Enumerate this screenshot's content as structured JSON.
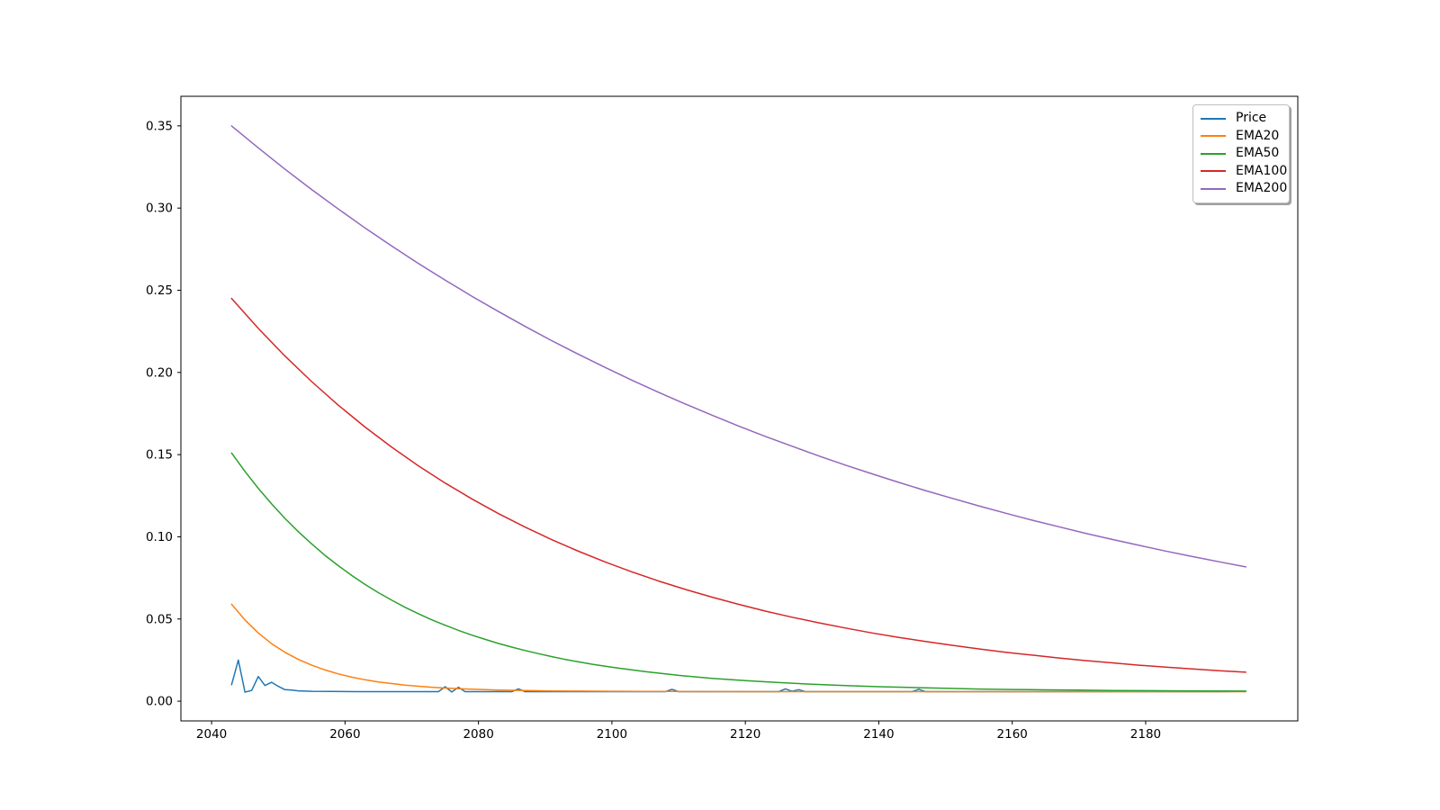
{
  "chart_data": {
    "type": "line",
    "title": "",
    "xlabel": "",
    "ylabel": "",
    "grid": false,
    "background_color": "#ffffff",
    "axes_edge_color": "#000000",
    "xlim": [
      2035.4,
      2202.8
    ],
    "ylim": [
      -0.012,
      0.368
    ],
    "xticks": [
      2040,
      2060,
      2080,
      2100,
      2120,
      2140,
      2160,
      2180
    ],
    "xtick_labels": [
      "2040",
      "2060",
      "2080",
      "2100",
      "2120",
      "2140",
      "2160",
      "2180"
    ],
    "yticks": [
      0.0,
      0.05,
      0.1,
      0.15,
      0.2,
      0.25,
      0.3,
      0.35
    ],
    "ytick_labels": [
      "0.00",
      "0.05",
      "0.10",
      "0.15",
      "0.20",
      "0.25",
      "0.30",
      "0.35"
    ],
    "legend": {
      "position": "upper-right",
      "shadow": true
    },
    "series": [
      {
        "name": "Price",
        "color": "#1f77b4",
        "x": [
          2043,
          2044,
          2045,
          2046,
          2047,
          2048,
          2049,
          2050,
          2051,
          2052,
          2053,
          2055,
          2058,
          2062,
          2066,
          2070,
          2074,
          2075,
          2076,
          2077,
          2078,
          2080,
          2083,
          2085,
          2086,
          2087,
          2090,
          2094,
          2098,
          2102,
          2106,
          2108,
          2109,
          2110,
          2114,
          2118,
          2122,
          2125,
          2126,
          2127,
          2128,
          2129,
          2133,
          2137,
          2141,
          2145,
          2146,
          2147,
          2151,
          2156,
          2161,
          2166,
          2171,
          2176,
          2181,
          2186,
          2191,
          2195
        ],
        "y": [
          0.01,
          0.025,
          0.0055,
          0.0065,
          0.015,
          0.0095,
          0.0115,
          0.009,
          0.007,
          0.0068,
          0.0063,
          0.006,
          0.0059,
          0.0058,
          0.0058,
          0.0058,
          0.0058,
          0.0088,
          0.0056,
          0.0085,
          0.0058,
          0.0058,
          0.0058,
          0.0058,
          0.0075,
          0.0058,
          0.0058,
          0.0058,
          0.0058,
          0.0058,
          0.0058,
          0.0058,
          0.0072,
          0.0058,
          0.0058,
          0.0058,
          0.0058,
          0.0058,
          0.0075,
          0.006,
          0.007,
          0.0058,
          0.0058,
          0.0058,
          0.0058,
          0.0058,
          0.0072,
          0.0058,
          0.0058,
          0.0058,
          0.0058,
          0.0058,
          0.0058,
          0.0058,
          0.0058,
          0.0058,
          0.0058,
          0.006
        ]
      },
      {
        "name": "EMA20",
        "color": "#ff7f0e",
        "x": [
          2043,
          2045,
          2047,
          2049,
          2051,
          2053,
          2055,
          2057,
          2059,
          2061,
          2063,
          2065,
          2067,
          2069,
          2071,
          2073,
          2075,
          2077,
          2079,
          2081,
          2083,
          2085,
          2088,
          2091,
          2095,
          2100,
          2105,
          2110,
          2120,
          2130,
          2140,
          2150,
          2160,
          2170,
          2180,
          2190,
          2195
        ],
        "y": [
          0.059,
          0.0494,
          0.0415,
          0.035,
          0.0297,
          0.0254,
          0.0219,
          0.019,
          0.0166,
          0.0146,
          0.013,
          0.0117,
          0.0107,
          0.0098,
          0.0091,
          0.0085,
          0.008,
          0.0076,
          0.0073,
          0.007,
          0.0068,
          0.0066,
          0.0064,
          0.0062,
          0.0061,
          0.006,
          0.0059,
          0.0059,
          0.0058,
          0.0058,
          0.0058,
          0.0058,
          0.0058,
          0.0058,
          0.0058,
          0.0058,
          0.0058
        ]
      },
      {
        "name": "EMA50",
        "color": "#2ca02c",
        "x": [
          2043,
          2045,
          2047,
          2049,
          2051,
          2053,
          2055,
          2057,
          2059,
          2061,
          2063,
          2065,
          2067,
          2069,
          2071,
          2073,
          2075,
          2077,
          2079,
          2081,
          2083,
          2085,
          2087,
          2089,
          2091,
          2093,
          2095,
          2097,
          2099,
          2101,
          2105,
          2110,
          2115,
          2120,
          2125,
          2130,
          2135,
          2140,
          2145,
          2150,
          2155,
          2160,
          2165,
          2170,
          2175,
          2180,
          2185,
          2190,
          2195
        ],
        "y": [
          0.151,
          0.1398,
          0.1295,
          0.12,
          0.1112,
          0.1031,
          0.0957,
          0.0887,
          0.0824,
          0.0765,
          0.071,
          0.066,
          0.0614,
          0.0571,
          0.0532,
          0.0495,
          0.0462,
          0.0431,
          0.0402,
          0.0376,
          0.0351,
          0.0329,
          0.0308,
          0.0289,
          0.0271,
          0.0254,
          0.0239,
          0.0225,
          0.0213,
          0.0201,
          0.018,
          0.0157,
          0.0139,
          0.0125,
          0.0113,
          0.0103,
          0.0095,
          0.0088,
          0.0083,
          0.0078,
          0.0074,
          0.0071,
          0.0069,
          0.0067,
          0.0065,
          0.0064,
          0.0063,
          0.0062,
          0.0061
        ]
      },
      {
        "name": "EMA100",
        "color": "#d62728",
        "x": [
          2043,
          2047,
          2051,
          2055,
          2059,
          2063,
          2067,
          2071,
          2075,
          2079,
          2083,
          2087,
          2091,
          2095,
          2099,
          2103,
          2107,
          2111,
          2115,
          2119,
          2123,
          2127,
          2131,
          2135,
          2139,
          2143,
          2147,
          2151,
          2155,
          2159,
          2163,
          2167,
          2171,
          2175,
          2179,
          2183,
          2187,
          2191,
          2195
        ],
        "y": [
          0.245,
          0.2268,
          0.21,
          0.1944,
          0.18,
          0.1668,
          0.1545,
          0.1432,
          0.1327,
          0.1231,
          0.1141,
          0.1059,
          0.0982,
          0.0912,
          0.0847,
          0.0787,
          0.0731,
          0.068,
          0.0633,
          0.0589,
          0.0548,
          0.0511,
          0.0477,
          0.0445,
          0.0415,
          0.0388,
          0.0363,
          0.034,
          0.0318,
          0.0298,
          0.028,
          0.0263,
          0.0247,
          0.0233,
          0.0219,
          0.0207,
          0.0196,
          0.0185,
          0.0176
        ]
      },
      {
        "name": "EMA200",
        "color": "#9467bd",
        "x": [
          2043,
          2047,
          2051,
          2055,
          2059,
          2063,
          2067,
          2071,
          2075,
          2079,
          2083,
          2087,
          2091,
          2095,
          2099,
          2103,
          2107,
          2111,
          2115,
          2119,
          2123,
          2127,
          2131,
          2135,
          2139,
          2143,
          2147,
          2151,
          2155,
          2159,
          2163,
          2167,
          2171,
          2175,
          2179,
          2183,
          2187,
          2191,
          2195
        ],
        "y": [
          0.35,
          0.3366,
          0.3237,
          0.3113,
          0.2994,
          0.2879,
          0.2769,
          0.2663,
          0.2562,
          0.2464,
          0.237,
          0.228,
          0.2193,
          0.211,
          0.203,
          0.1953,
          0.1879,
          0.1808,
          0.174,
          0.1674,
          0.1611,
          0.1551,
          0.1492,
          0.1436,
          0.1383,
          0.1331,
          0.1281,
          0.1234,
          0.1188,
          0.1144,
          0.1101,
          0.1061,
          0.1021,
          0.0984,
          0.0948,
          0.0913,
          0.088,
          0.0848,
          0.0817
        ]
      }
    ]
  }
}
